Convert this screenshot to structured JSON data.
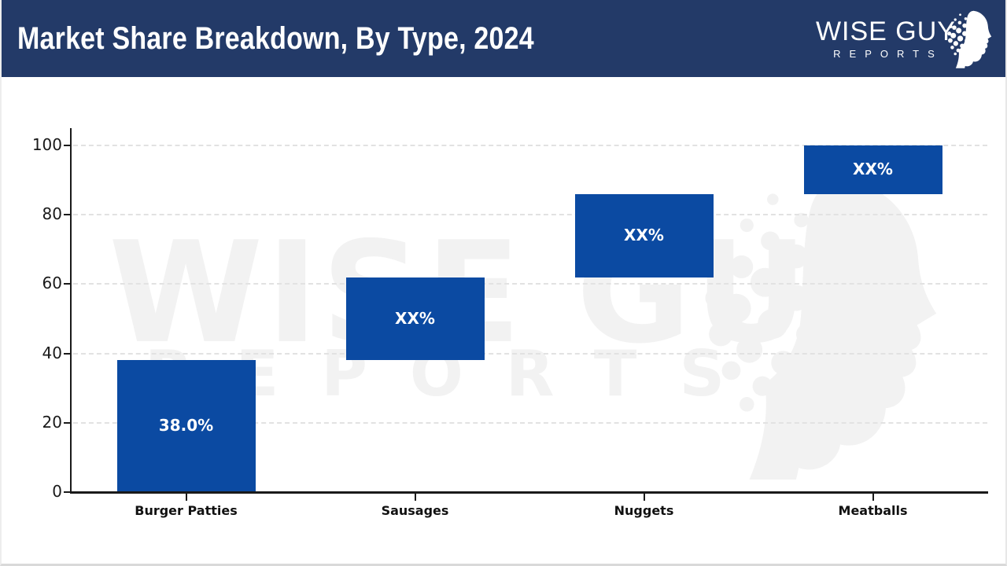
{
  "header": {
    "title": "Market Share Breakdown, By Type, 2024",
    "logo": {
      "wordmark": "WISE GUY",
      "subtitle": "REPORTS"
    }
  },
  "watermark": {
    "wordmark": "WISE GUY",
    "subtitle": "REPORTS"
  },
  "colors": {
    "header_bg": "#233a68",
    "bar": "#0b4aa2",
    "bar_label": "#ffffff",
    "axis": "#1a1a1a",
    "gridline": "#e2e2e2",
    "watermark": "#f2f2f2"
  },
  "chart_data": {
    "type": "bar",
    "subtype": "waterfall",
    "title": "Market Share Breakdown, By Type, 2024",
    "categories": [
      "Burger Patties",
      "Sausages",
      "Nuggets",
      "Meatballs"
    ],
    "series": [
      {
        "name": "Market share (%)",
        "segments": [
          {
            "category": "Burger Patties",
            "start": 0,
            "end": 38,
            "label": "38.0%"
          },
          {
            "category": "Sausages",
            "start": 38,
            "end": 62,
            "label": "XX%"
          },
          {
            "category": "Nuggets",
            "start": 62,
            "end": 86,
            "label": "XX%"
          },
          {
            "category": "Meatballs",
            "start": 86,
            "end": 100,
            "label": "XX%"
          }
        ]
      }
    ],
    "xlabel": "",
    "ylabel": "",
    "yticks": [
      0,
      20,
      40,
      60,
      80,
      100
    ],
    "ylim": [
      0,
      105
    ],
    "grid": "horizontal-dashed",
    "legend": "none"
  }
}
